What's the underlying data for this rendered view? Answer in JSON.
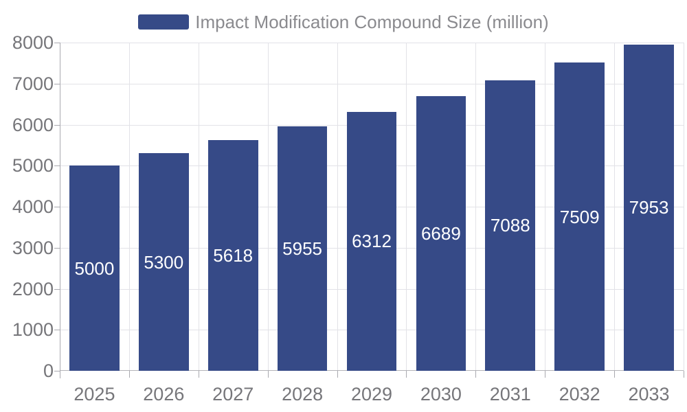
{
  "chart_data": {
    "type": "bar",
    "title": "Impact Modification Compound Size (million)",
    "legend_entries": [
      "Impact Modification Compound Size (million)"
    ],
    "legend_position": "top-center",
    "categories": [
      "2025",
      "2026",
      "2027",
      "2028",
      "2029",
      "2030",
      "2031",
      "2032",
      "2033"
    ],
    "values": [
      5000,
      5300,
      5618,
      5955,
      6312,
      6689,
      7088,
      7509,
      7953
    ],
    "xlabel": "",
    "ylabel": "",
    "ylim": [
      0,
      8000
    ],
    "y_ticks": [
      0,
      1000,
      2000,
      3000,
      4000,
      5000,
      6000,
      7000,
      8000
    ],
    "grid": true,
    "bar_labels_visible": true,
    "colors": {
      "bar": "#364a87",
      "bar_label": "#ffffff",
      "axis_label": "#76767a",
      "legend_text": "#8a8a8e",
      "grid_line": "#e2e2e7",
      "axis_line": "#a9a9af",
      "baseline": "#b4b4b9",
      "background": "#ffffff"
    }
  }
}
